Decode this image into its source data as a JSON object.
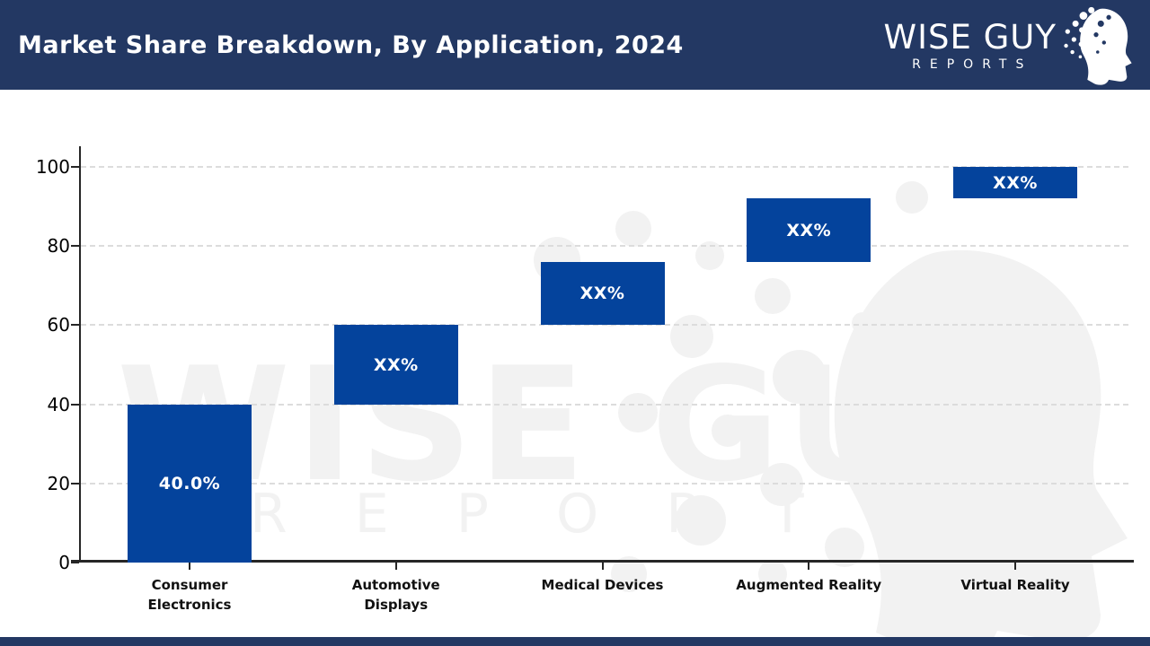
{
  "header": {
    "title": "Market Share Breakdown, By Application, 2024",
    "logo": {
      "line1": "WISE GUY",
      "line2": "REPORTS"
    }
  },
  "watermark": {
    "line1": "WISE GUY",
    "line2": "R E P O R T S"
  },
  "footer": {},
  "chart_data": {
    "type": "bar",
    "subtype": "waterfall",
    "title": "Market Share Breakdown, By Application, 2024",
    "categories": [
      "Consumer\nElectronics",
      "Automotive\nDisplays",
      "Medical Devices",
      "Augmented Reality",
      "Virtual Reality"
    ],
    "segments": [
      {
        "category": "Consumer Electronics",
        "start": 0,
        "end": 40,
        "label": "40.0%"
      },
      {
        "category": "Automotive Displays",
        "start": 40,
        "end": 60,
        "label": "XX%"
      },
      {
        "category": "Medical Devices",
        "start": 60,
        "end": 76,
        "label": "XX%"
      },
      {
        "category": "Augmented Reality",
        "start": 76,
        "end": 92,
        "label": "XX%"
      },
      {
        "category": "Virtual Reality",
        "start": 92,
        "end": 100,
        "label": "XX%"
      }
    ],
    "values_displayed": [
      "40.0%",
      "XX%",
      "XX%",
      "XX%",
      "XX%"
    ],
    "xlabel": "",
    "ylabel": "",
    "yticks": [
      0,
      20,
      40,
      60,
      80,
      100
    ],
    "ylim": [
      0,
      105
    ],
    "grid": "horizontal-dashed",
    "legend": "none",
    "bar_color": "#04439c",
    "colors": {
      "header_bg": "#233863",
      "footer_bg": "#233863",
      "bar": "#04439c",
      "gridline": "#dcdcdc",
      "axis": "#262626",
      "watermark": "#f2f2f2"
    }
  }
}
